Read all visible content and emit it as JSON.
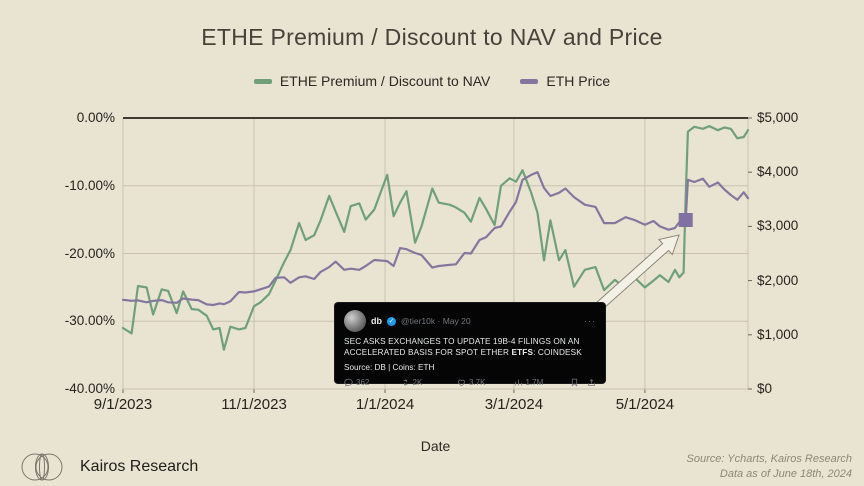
{
  "title": "ETHE Premium / Discount to NAV and Price",
  "legend": [
    {
      "label": "ETHE Premium / Discount to NAV",
      "color": "#6fa07a"
    },
    {
      "label": "ETH Price",
      "color": "#84779f"
    }
  ],
  "colors": {
    "background": "#e9e4d2",
    "grid": "#c9c2ae",
    "axis_line": "#3f3b33",
    "green_series": "#6fa07a",
    "purple_series": "#84779f",
    "marker": "#7f72a2"
  },
  "chart_data": {
    "type": "line",
    "title": "ETHE Premium / Discount to NAV and Price",
    "xlabel": "Date",
    "grid": true,
    "legend_position": "top",
    "x_domain": [
      "2023-09-01",
      "2024-06-18"
    ],
    "x_tick_dates": [
      "2023-09-01",
      "2023-11-01",
      "2024-01-01",
      "2024-03-01",
      "2024-05-01"
    ],
    "x_tick_labels": [
      "9/1/2023",
      "11/1/2023",
      "1/1/2024",
      "3/1/2024",
      "5/1/2024"
    ],
    "y_left": {
      "domain": [
        0,
        -40
      ],
      "tick_values": [
        0,
        -10,
        -20,
        -30,
        -40
      ],
      "tick_labels": [
        "0.00%",
        "-10.00%",
        "-20.00%",
        "-30.00%",
        "-40.00%"
      ]
    },
    "y_right": {
      "domain": [
        5000,
        0
      ],
      "tick_values": [
        5000,
        4000,
        3000,
        2000,
        1000,
        0
      ],
      "tick_labels": [
        "$5,000",
        "$4,000",
        "$3,000",
        "$2,000",
        "$1,000",
        "$0"
      ]
    },
    "dates": [
      "2023-09-01",
      "2023-09-05",
      "2023-09-08",
      "2023-09-12",
      "2023-09-15",
      "2023-09-19",
      "2023-09-22",
      "2023-09-26",
      "2023-09-29",
      "2023-10-03",
      "2023-10-06",
      "2023-10-10",
      "2023-10-13",
      "2023-10-16",
      "2023-10-18",
      "2023-10-21",
      "2023-10-25",
      "2023-10-28",
      "2023-11-01",
      "2023-11-04",
      "2023-11-08",
      "2023-11-11",
      "2023-11-15",
      "2023-11-18",
      "2023-11-22",
      "2023-11-25",
      "2023-11-29",
      "2023-12-02",
      "2023-12-06",
      "2023-12-09",
      "2023-12-13",
      "2023-12-16",
      "2023-12-20",
      "2023-12-23",
      "2023-12-27",
      "2024-01-02",
      "2024-01-05",
      "2024-01-08",
      "2024-01-11",
      "2024-01-15",
      "2024-01-18",
      "2024-01-23",
      "2024-01-26",
      "2024-01-31",
      "2024-02-03",
      "2024-02-07",
      "2024-02-10",
      "2024-02-14",
      "2024-02-17",
      "2024-02-21",
      "2024-02-24",
      "2024-02-28",
      "2024-03-02",
      "2024-03-05",
      "2024-03-09",
      "2024-03-12",
      "2024-03-15",
      "2024-03-18",
      "2024-03-22",
      "2024-03-25",
      "2024-03-29",
      "2024-04-03",
      "2024-04-08",
      "2024-04-12",
      "2024-04-17",
      "2024-04-22",
      "2024-04-26",
      "2024-05-01",
      "2024-05-05",
      "2024-05-08",
      "2024-05-12",
      "2024-05-15",
      "2024-05-17",
      "2024-05-19",
      "2024-05-20",
      "2024-05-21",
      "2024-05-24",
      "2024-05-28",
      "2024-05-31",
      "2024-06-04",
      "2024-06-07",
      "2024-06-10",
      "2024-06-13",
      "2024-06-16",
      "2024-06-18"
    ],
    "series": [
      {
        "name": "ETHE Premium / Discount to NAV",
        "axis": "left",
        "unit": "%",
        "color": "#6fa07a",
        "values": [
          -31.0,
          -31.8,
          -24.8,
          -25.0,
          -29.0,
          -25.3,
          -25.5,
          -28.8,
          -25.6,
          -28.2,
          -28.3,
          -29.2,
          -31.2,
          -31.0,
          -34.2,
          -30.8,
          -31.2,
          -31.0,
          -27.8,
          -27.2,
          -26.0,
          -24.0,
          -21.3,
          -19.5,
          -15.5,
          -18.0,
          -17.3,
          -15.1,
          -11.5,
          -13.8,
          -16.8,
          -13.0,
          -12.6,
          -15.0,
          -13.5,
          -8.4,
          -14.5,
          -12.5,
          -10.8,
          -18.4,
          -16.0,
          -10.4,
          -12.5,
          -12.8,
          -13.2,
          -14.0,
          -15.3,
          -11.8,
          -13.4,
          -15.8,
          -10.0,
          -8.9,
          -9.4,
          -7.7,
          -11.0,
          -14.0,
          -21.0,
          -15.1,
          -21.0,
          -19.5,
          -24.9,
          -22.4,
          -22.0,
          -25.4,
          -23.9,
          -25.1,
          -23.5,
          -25.0,
          -24.0,
          -23.2,
          -24.2,
          -22.4,
          -23.5,
          -22.8,
          -11.5,
          -2.0,
          -1.3,
          -1.6,
          -1.2,
          -1.8,
          -1.4,
          -1.6,
          -3.0,
          -2.8,
          -1.8
        ]
      },
      {
        "name": "ETH Price",
        "axis": "right",
        "unit": "USD",
        "color": "#84779f",
        "values": [
          1645,
          1628,
          1635,
          1600,
          1625,
          1640,
          1600,
          1590,
          1670,
          1650,
          1640,
          1560,
          1550,
          1580,
          1565,
          1620,
          1790,
          1780,
          1800,
          1840,
          1890,
          2050,
          2060,
          1960,
          2060,
          2080,
          2030,
          2160,
          2250,
          2350,
          2200,
          2220,
          2200,
          2270,
          2380,
          2360,
          2270,
          2600,
          2580,
          2510,
          2470,
          2240,
          2270,
          2290,
          2300,
          2510,
          2500,
          2750,
          2800,
          2970,
          3000,
          3270,
          3450,
          3860,
          3950,
          4000,
          3710,
          3560,
          3620,
          3700,
          3540,
          3400,
          3360,
          3060,
          3060,
          3170,
          3120,
          3030,
          3100,
          3000,
          2940,
          2970,
          3080,
          3100,
          3118,
          3860,
          3820,
          3880,
          3730,
          3810,
          3680,
          3580,
          3490,
          3630,
          3520
        ]
      }
    ],
    "marker": {
      "shape": "square",
      "series": "ETH Price",
      "date": "2024-05-20",
      "value": 3118,
      "color": "#7f72a2",
      "size": 14,
      "meaning": "May 20, 2024 - SEC asks exchanges to update 19b-4 filings"
    }
  },
  "tweet": {
    "name": "db",
    "verified_check": "✓",
    "handle_and_date": "@tier10k · May 20",
    "more": "···",
    "text_before_bold": "SEC ASKS EXCHANGES TO UPDATE 19B-4 FILINGS ON AN ACCELERATED BASIS FOR SPOT ETHER ",
    "text_bold": "ETFS",
    "text_after_bold": ": COINDESK",
    "source_line": "Source: DB | Coins: ETH",
    "stats": {
      "replies": "362",
      "reposts": "2K",
      "likes": "3.7K",
      "views": "1.7M"
    }
  },
  "footer": {
    "brand": "Kairos Research",
    "source_line1": "Source: Ycharts, Kairos Research",
    "source_line2": "Data as of June 18th, 2024"
  }
}
